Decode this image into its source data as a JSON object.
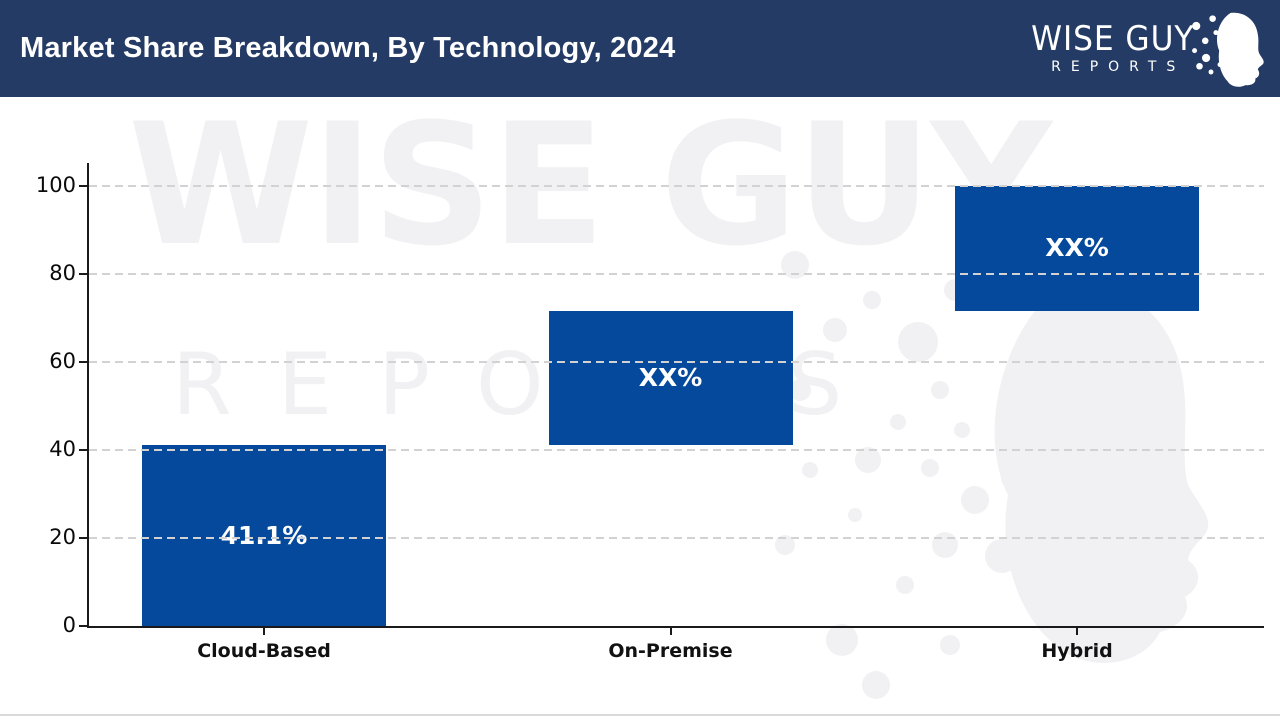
{
  "header": {
    "title": "Market Share Breakdown, By Technology, 2024",
    "bg_color": "#243B66",
    "logo": {
      "wordmark": "WISE GUY",
      "subtext": "REPORTS"
    }
  },
  "watermark": {
    "line1": "WISE GUY",
    "line2": "REPORTS"
  },
  "chart_data": {
    "type": "bar",
    "subtype": "floating-stacked-waterfall",
    "title": "Market Share Breakdown, By Technology, 2024",
    "categories": [
      "Cloud-Based",
      "On-Premise",
      "Hybrid"
    ],
    "segments": [
      {
        "category": "Cloud-Based",
        "start": 0,
        "end": 41.1,
        "label": "41.1%"
      },
      {
        "category": "On-Premise",
        "start": 41.1,
        "end": 71.7,
        "label": "XX%"
      },
      {
        "category": "Hybrid",
        "start": 71.7,
        "end": 100,
        "label": "XX%"
      }
    ],
    "yticks": [
      0,
      20,
      40,
      60,
      80,
      100
    ],
    "ylim": [
      0,
      105
    ],
    "xlabel": "",
    "ylabel": "",
    "bar_color": "#05499C",
    "value_label_color": "#FFFFFF",
    "grid": {
      "axis": "y",
      "style": "dashed",
      "color": "#D2D2D2",
      "on_top_of_bars": true
    },
    "legend": "none"
  },
  "colors": {
    "header_bg": "#243B66",
    "bar_blue": "#05499C",
    "watermark_gray": "#F1F1F4",
    "axis_black": "#1A1A1A"
  }
}
